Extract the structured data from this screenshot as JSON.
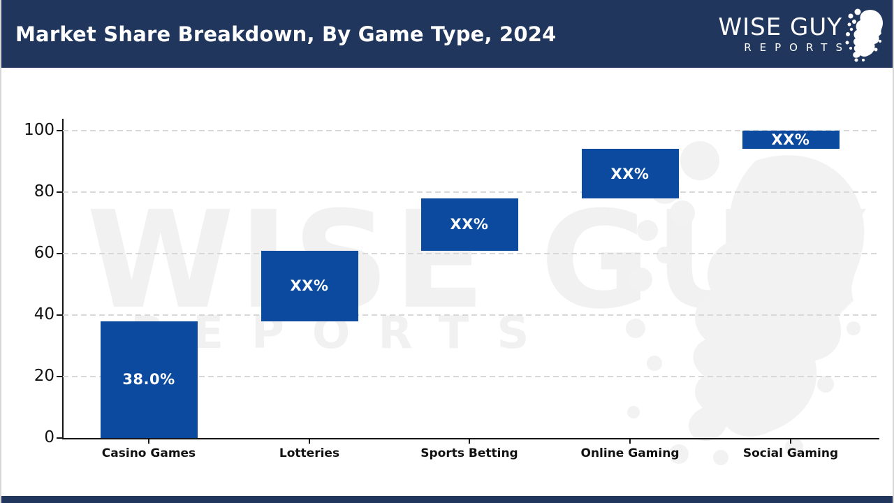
{
  "header": {
    "title": "Market Share Breakdown, By Game Type, 2024",
    "logo": {
      "line1": "WISE GUY",
      "line2": "REPORTS"
    }
  },
  "watermark": {
    "line1": "WISE GUY",
    "line2": "REPORTS"
  },
  "colors": {
    "header_bg": "#21365c",
    "footer_bg": "#21365c",
    "bar": "#0b4a9e",
    "grid": "#d8d8d8",
    "axis": "#151515",
    "bar_label": "#ffffff",
    "watermark": "#f1f1f1"
  },
  "chart_data": {
    "type": "bar",
    "subtype": "waterfall",
    "title": "Market Share Breakdown, By Game Type, 2024",
    "categories": [
      "Casino Games",
      "Lotteries",
      "Sports Betting",
      "Online Gaming",
      "Social Gaming"
    ],
    "segments": [
      {
        "category": "Casino Games",
        "start": 0,
        "end": 38,
        "label": "38.0%"
      },
      {
        "category": "Lotteries",
        "start": 38,
        "end": 61,
        "label": "XX%"
      },
      {
        "category": "Sports Betting",
        "start": 61,
        "end": 78,
        "label": "XX%"
      },
      {
        "category": "Online Gaming",
        "start": 78,
        "end": 94,
        "label": "XX%"
      },
      {
        "category": "Social Gaming",
        "start": 94,
        "end": 100,
        "label": "XX%"
      }
    ],
    "xlabel": "",
    "ylabel": "",
    "ylim": [
      0,
      104
    ],
    "yticks": [
      0,
      20,
      40,
      60,
      80,
      100
    ],
    "grid": "horizontal-dashed",
    "legend": "none"
  }
}
